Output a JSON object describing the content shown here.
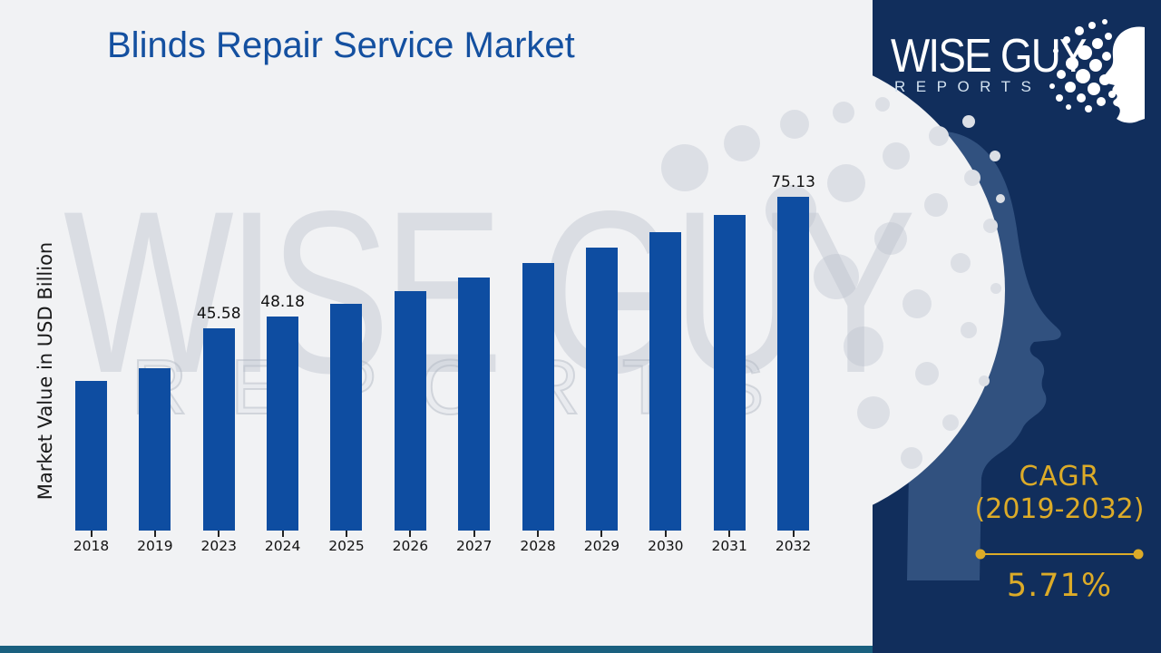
{
  "header": {
    "title": "Blinds Repair Service Market"
  },
  "chart_data": {
    "type": "bar",
    "title": "Blinds Repair Service Market",
    "xlabel": "",
    "ylabel": "Market Value in USD Billion",
    "categories": [
      "2018",
      "2019",
      "2023",
      "2024",
      "2025",
      "2026",
      "2027",
      "2028",
      "2029",
      "2030",
      "2031",
      "2032"
    ],
    "values": [
      33.6,
      36.5,
      45.58,
      48.18,
      50.93,
      53.84,
      56.92,
      60.17,
      63.6,
      67.24,
      71.08,
      75.13
    ],
    "bar_value_labels": {
      "2023": "45.58",
      "2024": "48.18",
      "2032": "75.13"
    },
    "ylim": [
      0,
      80
    ],
    "grid": false,
    "legend": null,
    "bar_color": "#0e4da1"
  },
  "watermark": {
    "title": "WISE GUY",
    "subtitle": "REPORTS"
  },
  "logo": {
    "title": "WISE GUY",
    "subtitle": "REPORTS"
  },
  "cagr": {
    "label": "CAGR",
    "range": "(2019-2032)",
    "value": "5.71%"
  },
  "colors": {
    "background": "#f1f2f4",
    "bar_blue": "#0e4da1",
    "title_blue": "#1450a0",
    "navy_panel": "#112e5c",
    "face_blue": "#31517f",
    "accent_yellow": "#dcab28",
    "teal_strip": "#1a607f",
    "watermark_gray": "#b8bfca"
  }
}
